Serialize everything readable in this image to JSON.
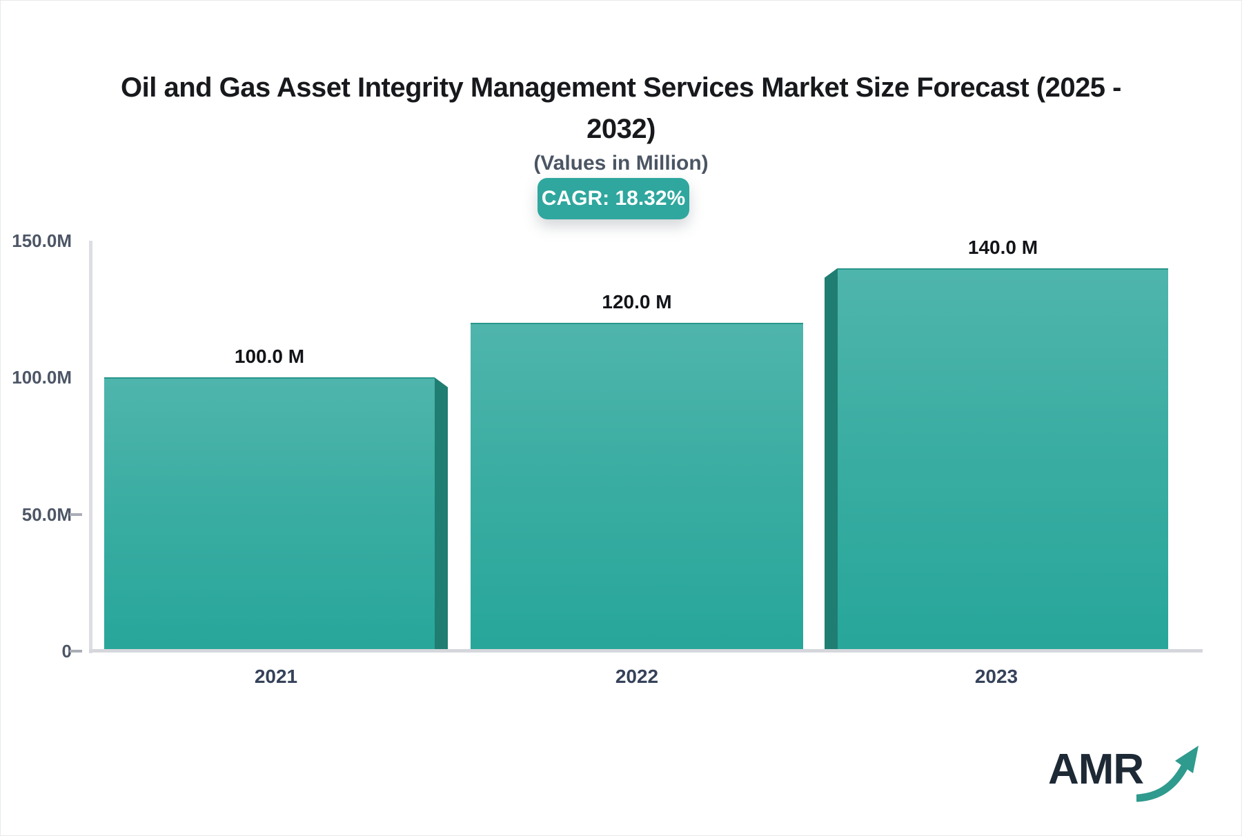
{
  "page": {
    "background": "#ffffff",
    "border_color": "#e7e9ec"
  },
  "header": {
    "title": "Oil and Gas Asset Integrity Management Services Market Size Forecast (2025 - 2032)",
    "title_line1": "Oil and Gas Asset Integrity Management Services Market Size Forecast (2025 -",
    "title_line2": "2032)",
    "subtitle": "(Values in Million)",
    "cagr_badge": "CAGR: 18.32%"
  },
  "chart_data": {
    "type": "bar",
    "title": "Oil and Gas Asset Integrity Management Services Market Size Forecast (2025 - 2032)",
    "subtitle": "(Values in Million)",
    "cagr": "18.32%",
    "unit": "Million",
    "categories": [
      "2021",
      "2022",
      "2023"
    ],
    "values": [
      100.0,
      120.0,
      140.0
    ],
    "value_labels": [
      "100.0 M",
      "120.0 M",
      "140.0 M"
    ],
    "xlabel": "",
    "ylabel": "",
    "ylim": [
      0,
      150
    ],
    "ytick_values": [
      0,
      50,
      100,
      150
    ],
    "ytick_labels": [
      "0",
      "50.0M",
      "100.0M",
      "150.0M"
    ],
    "grid": false,
    "legend": false,
    "bar_color_top": "#4fb5ac",
    "bar_color_bottom": "#27a69a",
    "bar_side_color": "#1f7d72",
    "badge_color": "#2fa79e",
    "axis_color": "#d5d7dc"
  },
  "logo": {
    "text": "AMR",
    "text_color": "#1d2935",
    "arrow_color": "#2f9a8e"
  }
}
